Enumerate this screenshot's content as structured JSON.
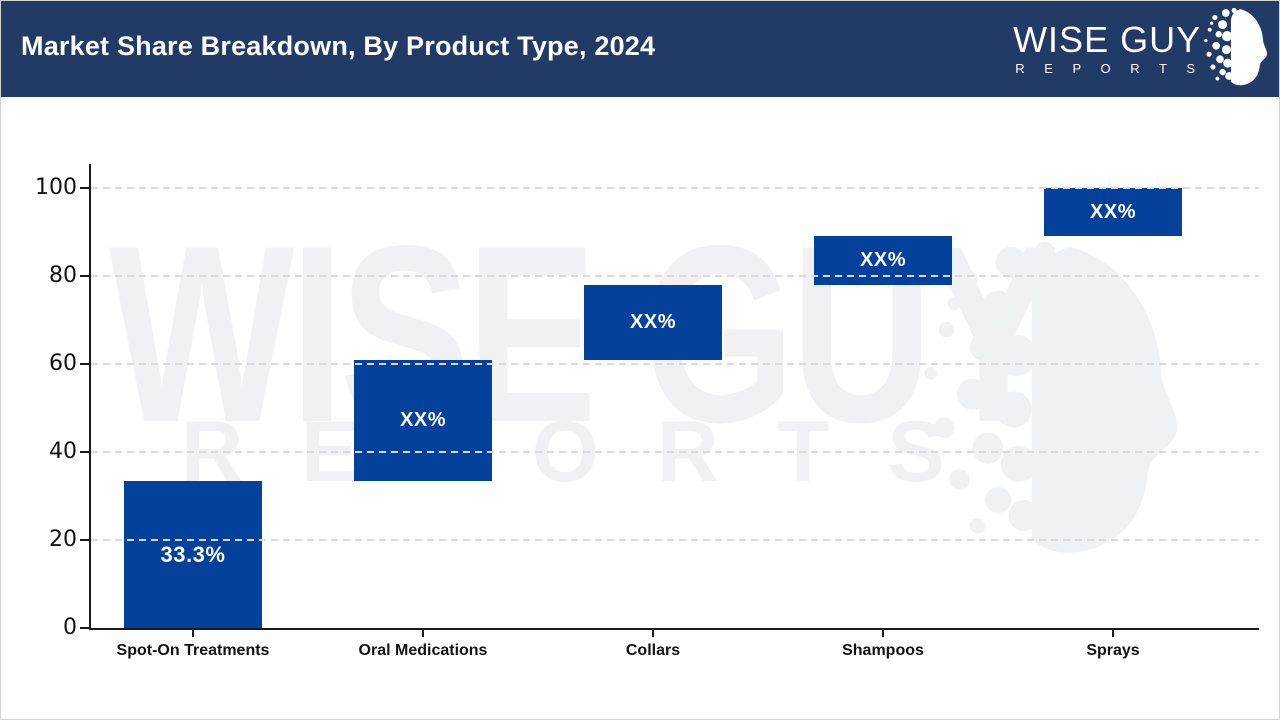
{
  "header": {
    "title": "Market Share Breakdown, By Product Type, 2024"
  },
  "logo": {
    "name": "WISE GUY",
    "sub": "R E P O R T S",
    "head_icon": "head-profile-dots"
  },
  "watermark": {
    "line1": "WISE GUY",
    "line2": "REPORTS"
  },
  "colors": {
    "header_bg": "#213a66",
    "bar": "#04419b",
    "bar_label": "#ffffff",
    "grid": "#d9d9d9",
    "axis": "#1a1a1a",
    "watermark": "#f1f1f3"
  },
  "chart_data": {
    "type": "bar",
    "subtype": "waterfall",
    "title": "Market Share Breakdown, By Product Type, 2024",
    "categories": [
      "Spot-On Treatments",
      "Oral Medications",
      "Collars",
      "Shampoos",
      "Sprays"
    ],
    "series": [
      {
        "name": "Spot-On Treatments",
        "start": 0,
        "end": 33.3,
        "value_label": "33.3%"
      },
      {
        "name": "Oral Medications",
        "start": 33.3,
        "end": 61,
        "value_label": "XX%"
      },
      {
        "name": "Collars",
        "start": 61,
        "end": 78,
        "value_label": "XX%"
      },
      {
        "name": "Shampoos",
        "start": 78,
        "end": 89,
        "value_label": "XX%"
      },
      {
        "name": "Sprays",
        "start": 89,
        "end": 100,
        "value_label": "XX%"
      }
    ],
    "xlabel": "",
    "ylabel": "",
    "yticks": [
      0,
      20,
      40,
      60,
      80,
      100
    ],
    "ylim": [
      0,
      105
    ],
    "grid": "horizontal-dashed",
    "legend": "none"
  }
}
